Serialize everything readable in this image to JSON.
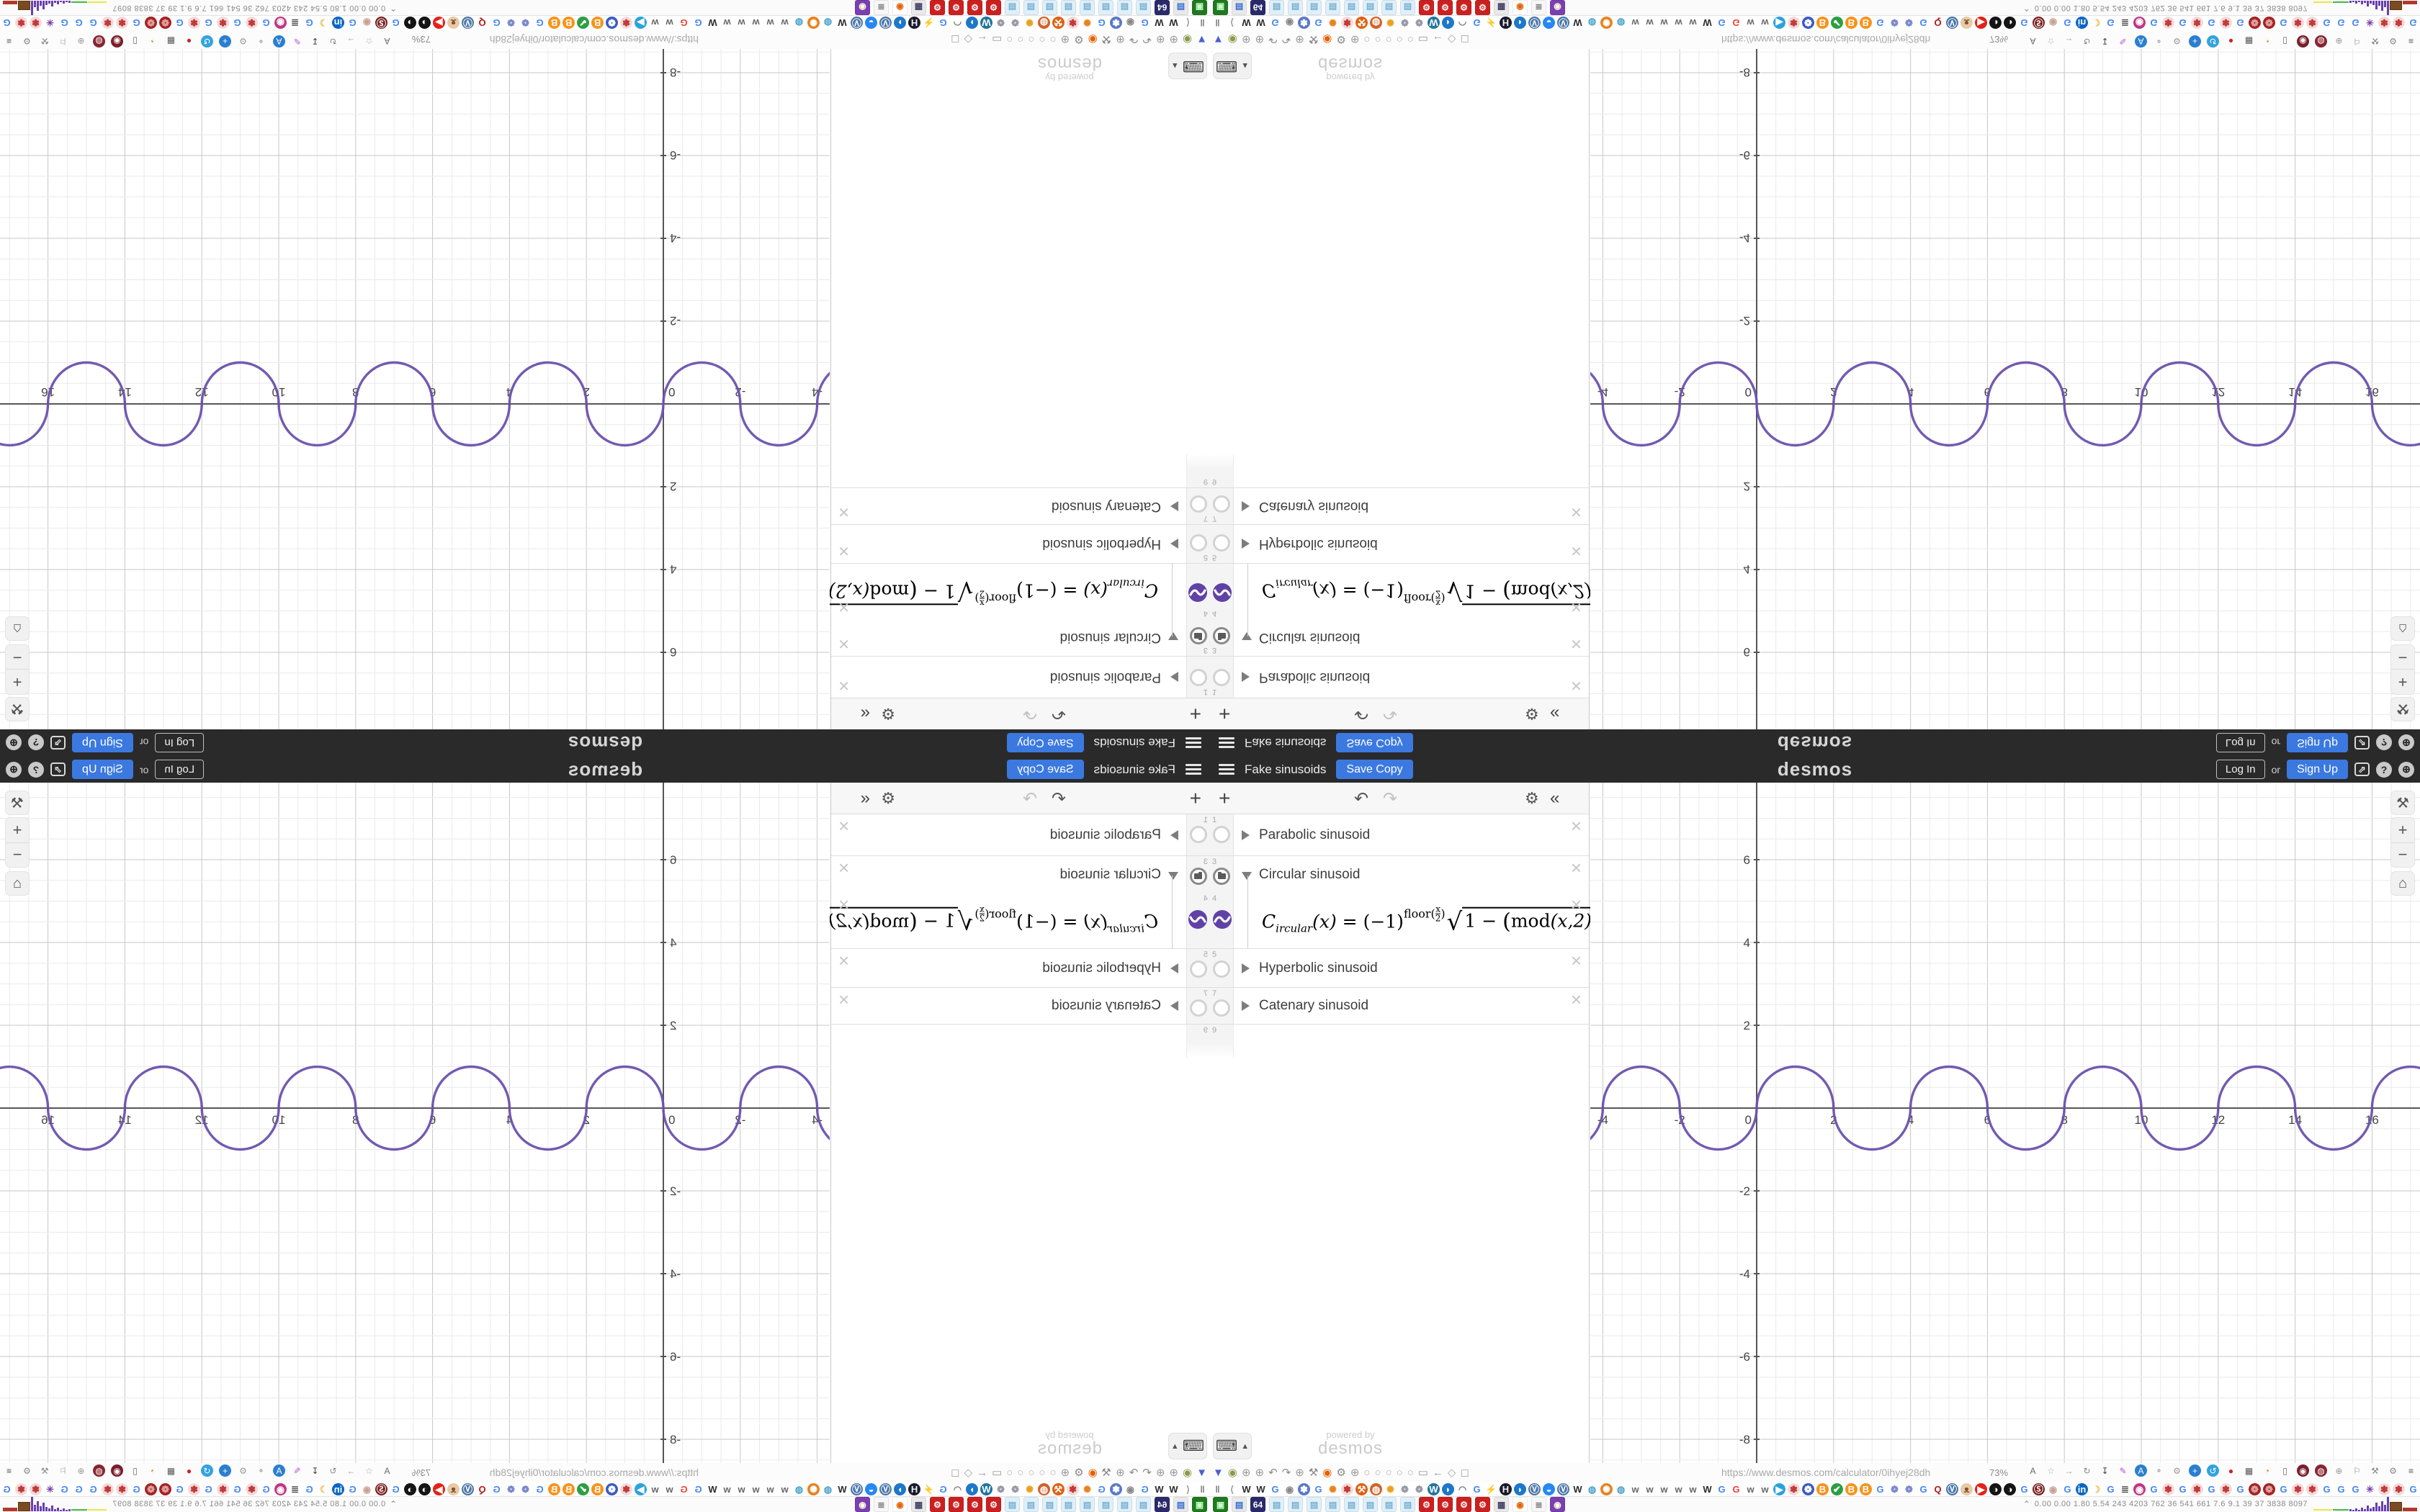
{
  "accent": {
    "header_bg": "#2a2a2a",
    "blue": "#3b79e0",
    "curve": "#6c51ad",
    "swatch": "#6042a6"
  },
  "desmos": {
    "header": {
      "title": "Fake sinusoids",
      "save_copy": "Save Copy",
      "logo": "desmos",
      "log_in": "Log In",
      "or": "or",
      "sign_up": "Sign Up",
      "share_icon": "⇗",
      "help_icon": "?",
      "language_icon": "⊕"
    },
    "toolbar": {
      "add": "+",
      "undo": "↶",
      "redo": "↷",
      "settings": "⚙",
      "collapse": "«"
    },
    "rows": [
      {
        "type": "folder_collapsed",
        "number": "1",
        "label": "Parabolic sinusoid"
      },
      {
        "type": "folder_expanded",
        "number": "3",
        "label": "Circular sinusoid"
      },
      {
        "type": "expression",
        "number": "4"
      },
      {
        "type": "folder_collapsed",
        "number": "5",
        "label": "Hyperbolic sinusoid"
      },
      {
        "type": "folder_collapsed",
        "number": "7",
        "label": "Catenary sinusoid"
      },
      {
        "type": "blank",
        "number": "9"
      }
    ],
    "formula": {
      "variable": "C",
      "subscript": "ircular",
      "args": "(x)",
      "equals": "=",
      "base": "(−1)",
      "exp_fn": "floor",
      "exp_num": "x",
      "exp_den": "2",
      "radical_lead": "1 −",
      "inner_open": "(",
      "mod_fn": "mod",
      "mod_args": "(x,2)",
      "inner_tail": "−1",
      "inner_close": ")",
      "square": "2"
    },
    "delete_row_icon": "×",
    "keyboard_button": {
      "keyboard_icon": "⌨",
      "show_icon": "▲"
    },
    "watermark": {
      "line1": "powered by",
      "line2": "desmos"
    },
    "graph_controls": {
      "wrench": "⚒",
      "zoom_in": "+",
      "zoom_out": "−",
      "home": "⌂"
    }
  },
  "chart_data": {
    "type": "line",
    "title": "Fake sinusoids",
    "expression": "C_circular(x) = (-1)^floor(x/2) * sqrt(1 - (mod(x,2)-1)^2)",
    "xlabel": "",
    "ylabel": "",
    "x_range": [
      -4.35,
      17.25
    ],
    "y_range": [
      -8.55,
      7.9
    ],
    "x_ticks": [
      -4,
      -2,
      0,
      2,
      4,
      6,
      8,
      10,
      12,
      14,
      16
    ],
    "y_ticks": [
      -8,
      -6,
      -4,
      -2,
      2,
      4,
      6
    ],
    "grid": true,
    "minor_step": 0.5,
    "label_step": 2,
    "curve": {
      "color": "#6c51ad",
      "semicircle_radius": 1,
      "k_min": -5,
      "k_max": 9,
      "pattern": "upper semicircle on [2k,2k+2] for even k, lower semicircle for odd k"
    }
  },
  "chrome": {
    "toolbar": {
      "url": "https://www.desmos.com/calculator/0ihyej28dh",
      "zoom_level": "73%",
      "left_icons": [
        {
          "g": "▼",
          "c": "#4a5fd0"
        },
        {
          "g": "◉",
          "c": "#8a9a4a"
        },
        {
          "g": "⊕",
          "c": "#9a9a9a"
        },
        {
          "g": "⊕",
          "c": "#9a9a9a"
        },
        {
          "g": "↶",
          "c": "#8a8a8a"
        },
        {
          "g": "↷",
          "c": "#8a8a8a"
        },
        {
          "g": "⊕",
          "c": "#9a9a9a"
        },
        {
          "g": "⚒",
          "c": "#8a8a8a"
        },
        {
          "g": "◉",
          "c": "#e66000"
        },
        {
          "g": "⚙",
          "c": "#8a8a8a"
        },
        {
          "g": "⊕",
          "c": "#9a9a9a"
        },
        {
          "g": "○",
          "c": "#b0b0b0"
        },
        {
          "g": "○",
          "c": "#b0b0b0"
        },
        {
          "g": "○",
          "c": "#b0b0b0"
        },
        {
          "g": "○",
          "c": "#b0b0b0"
        },
        {
          "g": "○",
          "c": "#b0b0b0"
        },
        {
          "g": "▭",
          "c": "#9a9a9a"
        },
        {
          "g": "←",
          "c": "#9a9a9a"
        },
        {
          "g": "◇",
          "c": "#a8a8a8"
        },
        {
          "g": "◻",
          "c": "#a8a8a8"
        }
      ],
      "right_icons": [
        {
          "g": "A",
          "c": "#666666"
        },
        {
          "g": "☆",
          "c": "#aaaaaa"
        },
        {
          "g": "→",
          "c": "#999999"
        },
        {
          "g": "↻",
          "c": "#888888"
        },
        {
          "g": "↧",
          "c": "#444444"
        },
        {
          "g": "✎",
          "c": "#b04fd0"
        },
        {
          "g": "A",
          "c": "#ffffff",
          "b": "#2a7fd0"
        },
        {
          "g": "⚬",
          "c": "#888888"
        },
        {
          "g": "⚙",
          "c": "#999999"
        },
        {
          "g": "+",
          "c": "#ffffff",
          "b": "#2a7fd0"
        },
        {
          "g": "↺",
          "c": "#ffffff",
          "b": "#33a3dd"
        },
        {
          "g": "●",
          "c": "#d02020"
        },
        {
          "g": "▦",
          "c": "#555555"
        },
        {
          "g": "◔",
          "c": "#d08030"
        },
        {
          "g": "▯",
          "c": "#666666"
        },
        {
          "g": "◉",
          "c": "#ffffff",
          "b": "#7a1f2a"
        },
        {
          "g": "◍",
          "c": "#ffffff",
          "b": "#8a2430"
        },
        {
          "g": "⊕",
          "c": "#999999"
        },
        {
          "g": "⚐",
          "c": "#888888"
        },
        {
          "g": "⚒",
          "c": "#888888"
        },
        {
          "g": "⚙",
          "c": "#888888"
        },
        {
          "g": "≡",
          "c": "#555555"
        }
      ]
    },
    "favicons": [
      {
        "g": "‖",
        "c": "#7a7a7a"
      },
      {
        "g": "⟨",
        "c": "#9a9a9a"
      },
      {
        "g": "W",
        "c": "#2b2b2b"
      },
      {
        "g": "W",
        "c": "#2b2b2b"
      },
      {
        "g": "G",
        "c": "#4285f4"
      },
      {
        "g": "◉",
        "c": "#888888"
      },
      {
        "g": "✽",
        "c": "#ffffff",
        "b": "#5b79c9"
      },
      {
        "g": "G",
        "c": "#4285f4"
      },
      {
        "g": "✺",
        "c": "#e8821e"
      },
      {
        "g": "✽",
        "c": "#c23a3a",
        "b": "#f4dada"
      },
      {
        "g": "⚒",
        "c": "#ffffff",
        "b": "#e06010"
      },
      {
        "g": "◍",
        "c": "#ffffff",
        "b": "#d2622a"
      },
      {
        "g": "✺",
        "c": "#e8a21e"
      },
      {
        "g": "❁",
        "c": "#9a9aa8"
      },
      {
        "g": "❁",
        "c": "#9a9aa8"
      },
      {
        "g": "W",
        "c": "#ffffff",
        "b": "#21759b"
      },
      {
        "g": "◗",
        "c": "#ffffff",
        "b": "#1d78c9"
      },
      {
        "g": "◠",
        "c": "#777777"
      },
      {
        "g": "G",
        "c": "#4285f4"
      },
      {
        "g": "⚡",
        "c": "#2bbcd4"
      },
      {
        "g": "H",
        "c": "#eeeeee",
        "b": "#1b1b2e"
      },
      {
        "g": "◗",
        "c": "#ffffff",
        "b": "#1d78c9"
      },
      {
        "g": "Ⓥ",
        "c": "#ffffff",
        "b": "#4a76a8"
      },
      {
        "g": "◒",
        "c": "#ffffff",
        "b": "#2787f5"
      },
      {
        "g": "Ⓥ",
        "c": "#ffffff",
        "b": "#4a76a8"
      },
      {
        "g": "W",
        "c": "#2b2b2b"
      },
      {
        "g": "◍",
        "c": "#4aa3c9"
      },
      {
        "g": "✺",
        "c": "#ffffff",
        "b": "#e8821e"
      },
      {
        "g": "◍",
        "c": "#4aa3c9"
      },
      {
        "g": "w",
        "c": "#666666"
      },
      {
        "g": "w",
        "c": "#666666"
      },
      {
        "g": "w",
        "c": "#666666"
      },
      {
        "g": "w",
        "c": "#666666"
      },
      {
        "g": "w",
        "c": "#666666"
      },
      {
        "g": "W",
        "c": "#2b2b2b"
      },
      {
        "g": "G",
        "c": "#4285f4"
      },
      {
        "g": "G",
        "c": "#ea4335"
      },
      {
        "g": "w",
        "c": "#666666"
      },
      {
        "g": "w",
        "c": "#666666"
      },
      {
        "g": "▶",
        "c": "#ffffff",
        "b": "#2aa3dd"
      },
      {
        "g": "✽",
        "c": "#c23a3a",
        "b": "#f4dada"
      },
      {
        "g": "❁",
        "c": "#ffffff",
        "b": "#3a5bc2"
      },
      {
        "g": "B",
        "c": "#ffffff",
        "b": "#f7931a"
      },
      {
        "g": "✔",
        "c": "#ffffff",
        "b": "#2e9e44"
      },
      {
        "g": "B",
        "c": "#ffffff",
        "b": "#f7931a"
      },
      {
        "g": "B",
        "c": "#ffffff",
        "b": "#f7931a"
      },
      {
        "g": "G",
        "c": "#4285f4"
      },
      {
        "g": "❁",
        "c": "#7a8acc"
      },
      {
        "g": "❁",
        "c": "#7a8acc"
      },
      {
        "g": "G",
        "c": "#4285f4"
      },
      {
        "g": "Q",
        "c": "#b01818"
      },
      {
        "g": "Ⓥ",
        "c": "#ffffff",
        "b": "#4a76a8"
      },
      {
        "g": "ᴥ",
        "c": "#7a5230",
        "b": "#e9c9a6"
      },
      {
        "g": "▶",
        "c": "#ffffff",
        "b": "#e62117"
      },
      {
        "g": "◑",
        "c": "#ffffff",
        "b": "#141414"
      },
      {
        "g": "◑",
        "c": "#ffffff",
        "b": "#141414"
      },
      {
        "g": "G",
        "c": "#4285f4"
      },
      {
        "g": "Ⓢ",
        "c": "#ffffff",
        "b": "#7a1f1f"
      },
      {
        "g": "◉",
        "c": "#caa090"
      },
      {
        "g": "G",
        "c": "#4285f4"
      },
      {
        "g": "in",
        "c": "#ffffff",
        "b": "#0a66c2"
      },
      {
        "g": "☽",
        "c": "#e9b949"
      },
      {
        "g": "G",
        "c": "#4285f4"
      },
      {
        "g": "≣",
        "c": "#555555"
      },
      {
        "g": "◉",
        "c": "#ffffff",
        "b": "#c13584"
      },
      {
        "g": "G",
        "c": "#4285f4"
      },
      {
        "g": "✽",
        "c": "#c23a3a",
        "b": "#f4dada"
      },
      {
        "g": "G",
        "c": "#4285f4"
      },
      {
        "g": "✽",
        "c": "#c23a3a",
        "b": "#f4dada"
      },
      {
        "g": "G",
        "c": "#4285f4"
      },
      {
        "g": "✽",
        "c": "#c23a3a",
        "b": "#f4dada"
      },
      {
        "g": "G",
        "c": "#4285f4"
      },
      {
        "g": "❁",
        "c": "#d9a0a0",
        "b": "#a82222"
      },
      {
        "g": "❁",
        "c": "#d9a0a0",
        "b": "#a82222"
      },
      {
        "g": "G",
        "c": "#4285f4"
      },
      {
        "g": "✽",
        "c": "#c23a3a",
        "b": "#f4dada"
      },
      {
        "g": "✽",
        "c": "#c23a3a",
        "b": "#f4dada"
      },
      {
        "g": "G",
        "c": "#4285f4"
      },
      {
        "g": "G",
        "c": "#4285f4"
      },
      {
        "g": "G",
        "c": "#4285f4"
      },
      {
        "g": "✳",
        "c": "#7a3fb0"
      },
      {
        "g": "✽",
        "c": "#c23a3a",
        "b": "#f4dada"
      },
      {
        "g": "✽",
        "c": "#c23a3a",
        "b": "#f4dada"
      },
      {
        "g": "G",
        "c": "#4285f4"
      },
      {
        "g": "❁",
        "c": "#e8a21e"
      },
      {
        "g": "❁",
        "c": "#e8a21e"
      },
      {
        "g": "G",
        "c": "#4285f4"
      },
      {
        "g": "⟩",
        "c": "#9a9a9a"
      },
      {
        "g": "∧",
        "c": "#9a9a9a"
      }
    ],
    "taskbar": {
      "apps": [
        {
          "g": "▣",
          "c": "#caffca",
          "b": "#1f7a1f"
        },
        {
          "g": "▤",
          "c": "#3a6fd0",
          "b": "#e9e9e9"
        },
        {
          "g": "64",
          "c": "#ffffff",
          "b": "#2a2a6a"
        },
        {
          "g": "▤",
          "c": "#7ab0d0",
          "b": "#dff0fa"
        },
        {
          "g": "▤",
          "c": "#7ab0d0",
          "b": "#dff0fa"
        },
        {
          "g": "▤",
          "c": "#7ab0d0",
          "b": "#dff0fa"
        },
        {
          "g": "▤",
          "c": "#7ab0d0",
          "b": "#dff0fa"
        },
        {
          "g": "▤",
          "c": "#7ab0d0",
          "b": "#dff0fa"
        },
        {
          "g": "▤",
          "c": "#7ab0d0",
          "b": "#dff0fa"
        },
        {
          "g": "▤",
          "c": "#7ab0d0",
          "b": "#dff0fa"
        },
        {
          "g": "▤",
          "c": "#7ab0d0",
          "b": "#dff0fa"
        },
        {
          "g": "⚙",
          "c": "#ffffff",
          "b": "#cc2020"
        },
        {
          "g": "⚙",
          "c": "#ffffff",
          "b": "#cc2020"
        },
        {
          "g": "⚙",
          "c": "#ffffff",
          "b": "#cc2020"
        },
        {
          "g": "⚙",
          "c": "#ffffff",
          "b": "#cc2020"
        },
        {
          "g": "▦",
          "c": "#444466",
          "b": "#e9e9e9"
        },
        {
          "g": "◉",
          "c": "#e66000",
          "b": "#ffffff"
        },
        {
          "g": "≣",
          "c": "#888888",
          "b": "#f7f7f7"
        },
        {
          "g": "◉",
          "c": "#ffffdd",
          "b": "#7a3fb0"
        }
      ],
      "tray": {
        "chevron": "⌃",
        "values": "0.00 0.00 1.80 5.54 243 4203 762 36 541 661 7.6 9.1 39 37 3838 8097",
        "spark_bars": [
          3,
          2,
          4,
          2,
          5,
          3,
          8,
          4,
          6,
          12,
          7,
          14,
          9,
          20
        ]
      }
    }
  }
}
